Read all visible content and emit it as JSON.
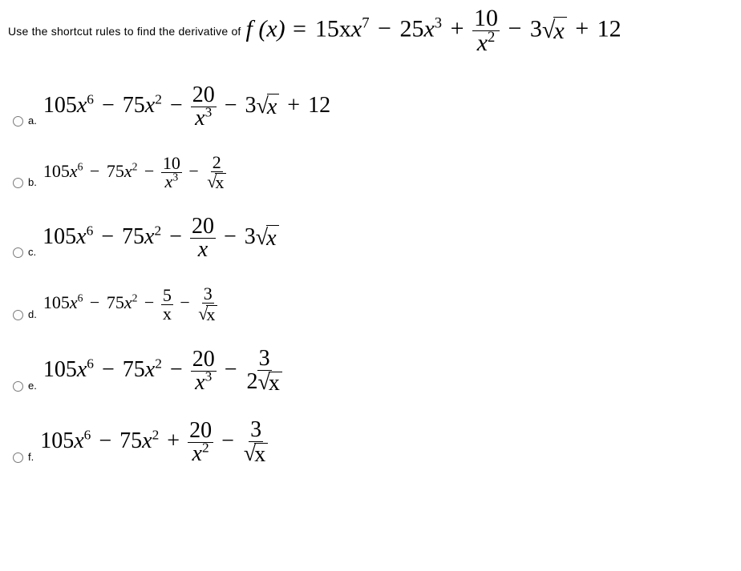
{
  "question": {
    "prefix_text": "Use the shortcut rules to find the derivative of",
    "func_lhs": "f (x) =",
    "t1": "15x",
    "t1_exp": "7",
    "t2": "25x",
    "t2_exp": "3",
    "frac_num": "10",
    "frac_den_base": "x",
    "frac_den_exp": "2",
    "t4_coef": "3",
    "t4_rad": "x",
    "t5": "12"
  },
  "options": {
    "a": {
      "label": "a.",
      "p1": "105x",
      "e1": "6",
      "p2": "75x",
      "e2": "2",
      "frac_num": "20",
      "frac_den_base": "x",
      "frac_den_exp": "3",
      "t4_coef": "3",
      "t4_rad": "x",
      "t5": "12"
    },
    "b": {
      "label": "b.",
      "p1": "105x",
      "e1": "6",
      "p2": "75x",
      "e2": "2",
      "f1_num": "10",
      "f1_den_base": "x",
      "f1_den_exp": "3",
      "f2_num": "2",
      "f2_den_rad": "x"
    },
    "c": {
      "label": "c.",
      "p1": "105x",
      "e1": "6",
      "p2": "75x",
      "e2": "2",
      "frac_num": "20",
      "frac_den": "x",
      "t4_coef": "3",
      "t4_rad": "x"
    },
    "d": {
      "label": "d.",
      "p1": "105x",
      "e1": "6",
      "p2": "75x",
      "e2": "2",
      "f1_num": "5",
      "f1_den": "x",
      "f2_num": "3",
      "f2_den_rad": "x"
    },
    "e": {
      "label": "e.",
      "p1": "105x",
      "e1": "6",
      "p2": "75x",
      "e2": "2",
      "f1_num": "20",
      "f1_den_base": "x",
      "f1_den_exp": "3",
      "f2_num": "3",
      "f2_den_coef": "2",
      "f2_den_rad": "x"
    },
    "f": {
      "label": "f.",
      "p1": "105x",
      "e1": "6",
      "p2": "75x",
      "e2": "2",
      "f1_num": "20",
      "f1_den_base": "x",
      "f1_den_exp": "2",
      "f2_num": "3",
      "f2_den_rad": "x"
    }
  },
  "ops": {
    "minus": "−",
    "plus": "+",
    "eq": "="
  }
}
